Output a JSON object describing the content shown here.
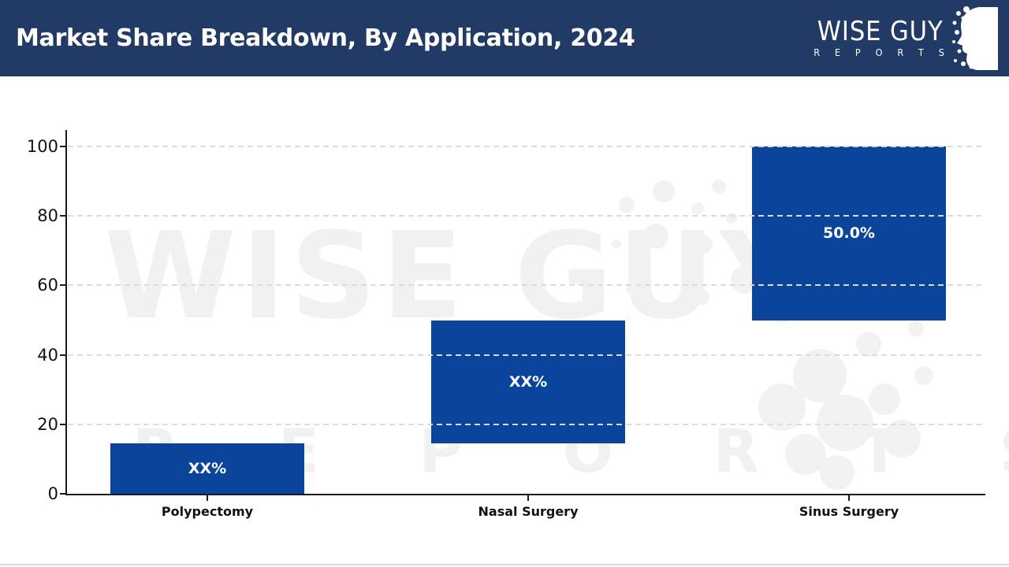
{
  "header": {
    "title": "Market Share Breakdown, By Application, 2024",
    "logo": {
      "line1": "WISE GUY",
      "line2": "R E P O R T S"
    }
  },
  "watermark": {
    "line1": "WISE GUY",
    "line2": "R E P O R T S"
  },
  "colors": {
    "header_bg": "#213A66",
    "bar": "#0A459B",
    "grid": "#DCDCDC",
    "axis": "#1A1A1A",
    "watermark": "#F1F1F1",
    "bar_label_text": "#FFFFFF"
  },
  "chart_data": {
    "type": "bar",
    "subtype": "floating-range-bars (waterfall style)",
    "title": "Market Share Breakdown, By Application, 2024",
    "categories": [
      "Polypectomy",
      "Nasal Surgery",
      "Sinus Surgery"
    ],
    "bars": [
      {
        "category": "Polypectomy",
        "start": 0,
        "end": 14.5,
        "label": "XX%"
      },
      {
        "category": "Nasal Surgery",
        "start": 14.5,
        "end": 50,
        "label": "XX%"
      },
      {
        "category": "Sinus Surgery",
        "start": 50,
        "end": 100,
        "label": "50.0%"
      }
    ],
    "xlabel": "",
    "ylabel": "",
    "ylim": [
      0,
      100
    ],
    "yticks": [
      0,
      20,
      40,
      60,
      80,
      100
    ],
    "grid": "horizontal dashed, drawn above bars",
    "legend": "none"
  }
}
